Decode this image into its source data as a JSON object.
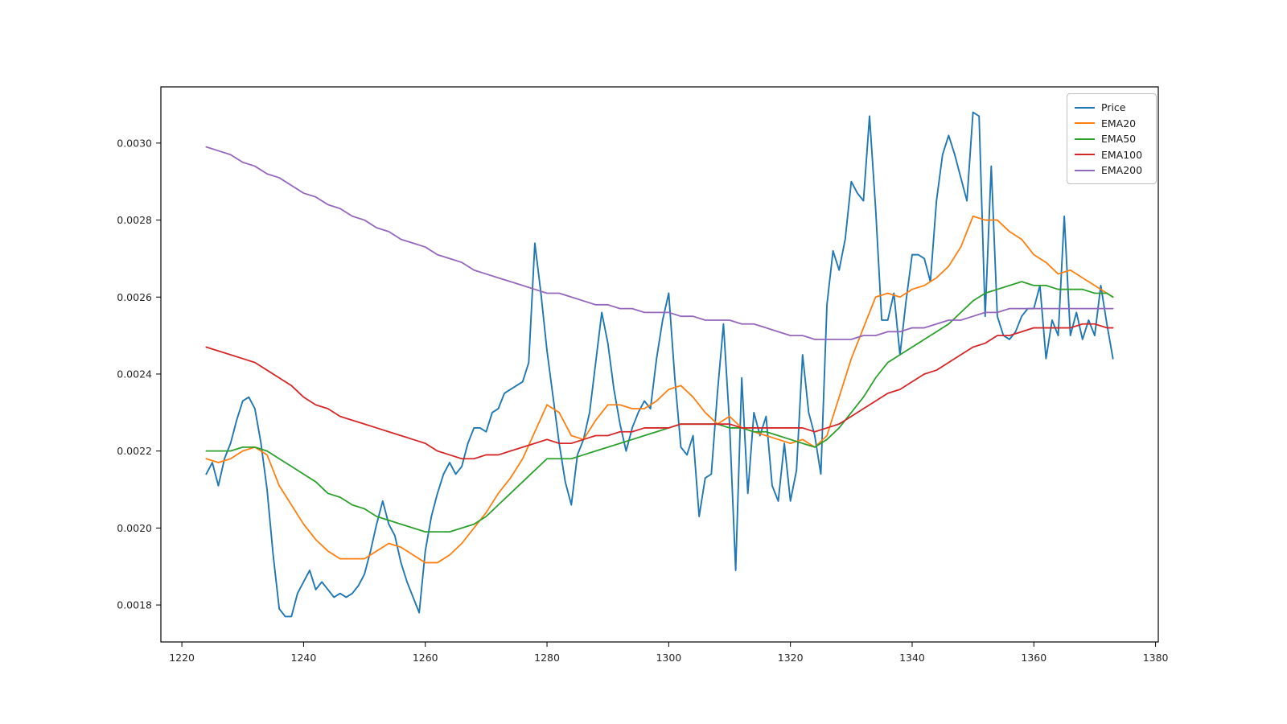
{
  "chart_data": {
    "type": "line",
    "title": "",
    "xlabel": "",
    "ylabel": "",
    "grid": false,
    "background_color": "#ffffff",
    "axis_color": "#000000",
    "xlim": [
      1216.55,
      1380.45
    ],
    "ylim": [
      0.001704,
      0.003146
    ],
    "x_ticks": [
      1220,
      1240,
      1260,
      1280,
      1300,
      1320,
      1340,
      1360,
      1380
    ],
    "x_tick_labels": [
      "1220",
      "1240",
      "1260",
      "1280",
      "1300",
      "1320",
      "1340",
      "1360",
      "1380"
    ],
    "y_ticks": [
      0.0018,
      0.002,
      0.0022,
      0.0024,
      0.0026,
      0.0028,
      0.003
    ],
    "y_tick_labels": [
      "0.0018",
      "0.0020",
      "0.0022",
      "0.0024",
      "0.0026",
      "0.0028",
      "0.0030"
    ],
    "legend": {
      "position": "upper-right",
      "entries": [
        "Price",
        "EMA20",
        "EMA50",
        "EMA100",
        "EMA200"
      ]
    },
    "series": [
      {
        "name": "Price",
        "color": "#1f77b4",
        "line_width": 1.9,
        "x_start": 1224,
        "x_step": 1,
        "x_end": 1373,
        "values": [
          0.00214,
          0.00217,
          0.00211,
          0.00218,
          0.00222,
          0.00228,
          0.00233,
          0.00234,
          0.00231,
          0.00222,
          0.0021,
          0.00193,
          0.00179,
          0.00177,
          0.00177,
          0.00183,
          0.00186,
          0.00189,
          0.00184,
          0.00186,
          0.00184,
          0.00182,
          0.00183,
          0.00182,
          0.00183,
          0.00185,
          0.00188,
          0.00194,
          0.00201,
          0.00207,
          0.00201,
          0.00198,
          0.00191,
          0.00186,
          0.00182,
          0.00178,
          0.00194,
          0.00203,
          0.00209,
          0.00214,
          0.00217,
          0.00214,
          0.00216,
          0.00222,
          0.00226,
          0.00226,
          0.00225,
          0.0023,
          0.00231,
          0.00235,
          0.00236,
          0.00237,
          0.00238,
          0.00243,
          0.00274,
          0.00261,
          0.00246,
          0.00234,
          0.00222,
          0.00212,
          0.00206,
          0.00219,
          0.00223,
          0.0023,
          0.00243,
          0.00256,
          0.00248,
          0.00236,
          0.00227,
          0.0022,
          0.00226,
          0.0023,
          0.00233,
          0.00231,
          0.00244,
          0.00254,
          0.00261,
          0.00239,
          0.00221,
          0.00219,
          0.00224,
          0.00203,
          0.00213,
          0.00214,
          0.00235,
          0.00253,
          0.00227,
          0.00189,
          0.00239,
          0.00209,
          0.0023,
          0.00224,
          0.00229,
          0.00211,
          0.00207,
          0.00222,
          0.00207,
          0.00215,
          0.00245,
          0.0023,
          0.00224,
          0.00214,
          0.00258,
          0.00272,
          0.00267,
          0.00275,
          0.0029,
          0.00287,
          0.00285,
          0.00307,
          0.00283,
          0.00254,
          0.00254,
          0.00261,
          0.00245,
          0.00259,
          0.00271,
          0.00271,
          0.0027,
          0.00264,
          0.00285,
          0.00297,
          0.00302,
          0.00297,
          0.00291,
          0.00285,
          0.00308,
          0.00307,
          0.00255,
          0.00294,
          0.00255,
          0.0025,
          0.00249,
          0.00251,
          0.00255,
          0.00257,
          0.00257,
          0.00263,
          0.00244,
          0.00254,
          0.0025,
          0.00281,
          0.0025,
          0.00256,
          0.00249,
          0.00254,
          0.0025,
          0.00263,
          0.00253,
          0.00244
        ]
      },
      {
        "name": "EMA20",
        "color": "#ff7f0e",
        "line_width": 1.8,
        "x_start": 1224,
        "x_step": 2,
        "x_end": 1373,
        "values": [
          0.00218,
          0.00217,
          0.00218,
          0.0022,
          0.00221,
          0.00219,
          0.00211,
          0.00206,
          0.00201,
          0.00197,
          0.00194,
          0.00192,
          0.00192,
          0.00192,
          0.00194,
          0.00196,
          0.00195,
          0.00193,
          0.00191,
          0.00191,
          0.00193,
          0.00196,
          0.002,
          0.00204,
          0.00209,
          0.00213,
          0.00218,
          0.00225,
          0.00232,
          0.0023,
          0.00224,
          0.00223,
          0.00228,
          0.00232,
          0.00232,
          0.00231,
          0.00231,
          0.00233,
          0.00236,
          0.00237,
          0.00234,
          0.0023,
          0.00227,
          0.00229,
          0.00226,
          0.00225,
          0.00224,
          0.00223,
          0.00222,
          0.00223,
          0.00221,
          0.00224,
          0.00234,
          0.00244,
          0.00252,
          0.0026,
          0.00261,
          0.0026,
          0.00262,
          0.00263,
          0.00265,
          0.00268,
          0.00273,
          0.00281,
          0.0028,
          0.0028,
          0.00277,
          0.00275,
          0.00271,
          0.00269,
          0.00266,
          0.00267,
          0.00265,
          0.00263,
          0.00261,
          0.0026
        ]
      },
      {
        "name": "EMA50",
        "color": "#2ca02c",
        "line_width": 1.8,
        "x_start": 1224,
        "x_step": 2,
        "x_end": 1373,
        "values": [
          0.0022,
          0.0022,
          0.0022,
          0.00221,
          0.00221,
          0.0022,
          0.00218,
          0.00216,
          0.00214,
          0.00212,
          0.00209,
          0.00208,
          0.00206,
          0.00205,
          0.00203,
          0.00202,
          0.00201,
          0.002,
          0.00199,
          0.00199,
          0.00199,
          0.002,
          0.00201,
          0.00203,
          0.00206,
          0.00209,
          0.00212,
          0.00215,
          0.00218,
          0.00218,
          0.00218,
          0.00219,
          0.0022,
          0.00221,
          0.00222,
          0.00223,
          0.00224,
          0.00225,
          0.00226,
          0.00227,
          0.00227,
          0.00227,
          0.00227,
          0.00226,
          0.00226,
          0.00225,
          0.00225,
          0.00224,
          0.00223,
          0.00222,
          0.00221,
          0.00223,
          0.00226,
          0.0023,
          0.00234,
          0.00239,
          0.00243,
          0.00245,
          0.00247,
          0.00249,
          0.00251,
          0.00253,
          0.00256,
          0.00259,
          0.00261,
          0.00262,
          0.00263,
          0.00264,
          0.00263,
          0.00263,
          0.00262,
          0.00262,
          0.00262,
          0.00261,
          0.00261,
          0.0026
        ]
      },
      {
        "name": "EMA100",
        "color": "#d62728",
        "line_width": 1.8,
        "x_start": 1224,
        "x_step": 2,
        "x_end": 1373,
        "values": [
          0.00247,
          0.00246,
          0.00245,
          0.00244,
          0.00243,
          0.00241,
          0.00239,
          0.00237,
          0.00234,
          0.00232,
          0.00231,
          0.00229,
          0.00228,
          0.00227,
          0.00226,
          0.00225,
          0.00224,
          0.00223,
          0.00222,
          0.0022,
          0.00219,
          0.00218,
          0.00218,
          0.00219,
          0.00219,
          0.0022,
          0.00221,
          0.00222,
          0.00223,
          0.00222,
          0.00222,
          0.00223,
          0.00224,
          0.00224,
          0.00225,
          0.00225,
          0.00226,
          0.00226,
          0.00226,
          0.00227,
          0.00227,
          0.00227,
          0.00227,
          0.00227,
          0.00226,
          0.00226,
          0.00226,
          0.00226,
          0.00226,
          0.00226,
          0.00225,
          0.00226,
          0.00227,
          0.00229,
          0.00231,
          0.00233,
          0.00235,
          0.00236,
          0.00238,
          0.0024,
          0.00241,
          0.00243,
          0.00245,
          0.00247,
          0.00248,
          0.0025,
          0.0025,
          0.00251,
          0.00252,
          0.00252,
          0.00252,
          0.00252,
          0.00253,
          0.00253,
          0.00252,
          0.00252
        ]
      },
      {
        "name": "EMA200",
        "color": "#9467bd",
        "line_width": 1.8,
        "x_start": 1224,
        "x_step": 2,
        "x_end": 1373,
        "values": [
          0.00299,
          0.00298,
          0.00297,
          0.00295,
          0.00294,
          0.00292,
          0.00291,
          0.00289,
          0.00287,
          0.00286,
          0.00284,
          0.00283,
          0.00281,
          0.0028,
          0.00278,
          0.00277,
          0.00275,
          0.00274,
          0.00273,
          0.00271,
          0.0027,
          0.00269,
          0.00267,
          0.00266,
          0.00265,
          0.00264,
          0.00263,
          0.00262,
          0.00261,
          0.00261,
          0.0026,
          0.00259,
          0.00258,
          0.00258,
          0.00257,
          0.00257,
          0.00256,
          0.00256,
          0.00256,
          0.00255,
          0.00255,
          0.00254,
          0.00254,
          0.00254,
          0.00253,
          0.00253,
          0.00252,
          0.00251,
          0.0025,
          0.0025,
          0.00249,
          0.00249,
          0.00249,
          0.00249,
          0.0025,
          0.0025,
          0.00251,
          0.00251,
          0.00252,
          0.00252,
          0.00253,
          0.00254,
          0.00254,
          0.00255,
          0.00256,
          0.00256,
          0.00257,
          0.00257,
          0.00257,
          0.00257,
          0.00257,
          0.00257,
          0.00257,
          0.00257,
          0.00257,
          0.00257
        ]
      }
    ]
  }
}
